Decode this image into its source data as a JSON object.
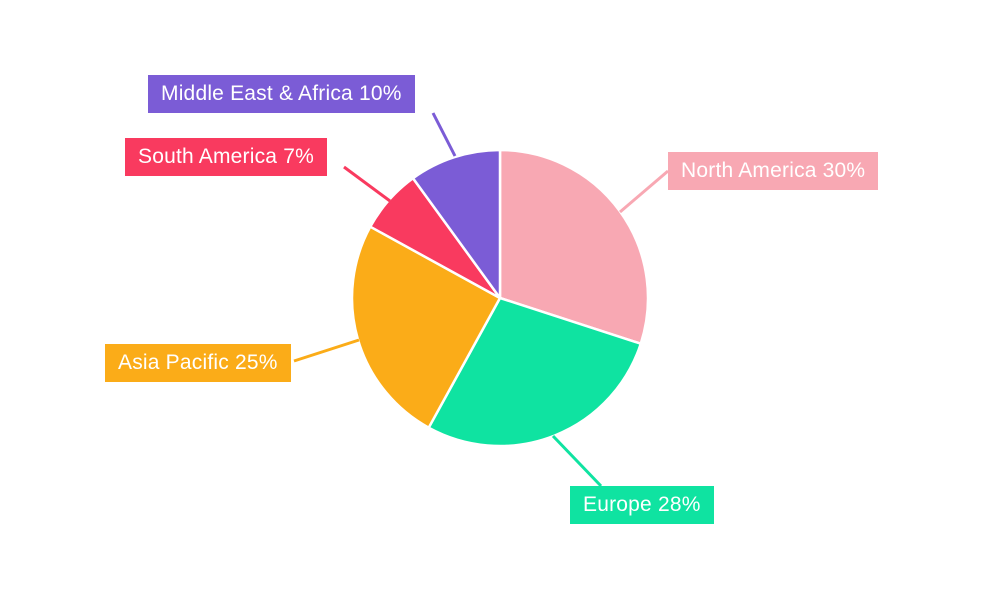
{
  "chart_data": {
    "type": "pie",
    "title": "",
    "categories": [
      "North America",
      "Europe",
      "Asia Pacific",
      "South America",
      "Middle East & Africa"
    ],
    "values": [
      30,
      28,
      25,
      7,
      10
    ],
    "unit": "%",
    "labels": [
      "North America 30%",
      "Europe 28%",
      "Asia Pacific 25%",
      "South America 7%",
      "Middle East & Africa 10%"
    ],
    "colors": [
      "#F8A8B3",
      "#0FE3A1",
      "#FBAC18",
      "#F93A5F",
      "#7B5CD6"
    ],
    "label_text_color": "#FFFFFF",
    "background": "#FFFFFF",
    "start_angle_deg": 0,
    "direction": "clockwise",
    "legend_position": "none",
    "label_style": "colored-boxes-with-leader-lines"
  }
}
